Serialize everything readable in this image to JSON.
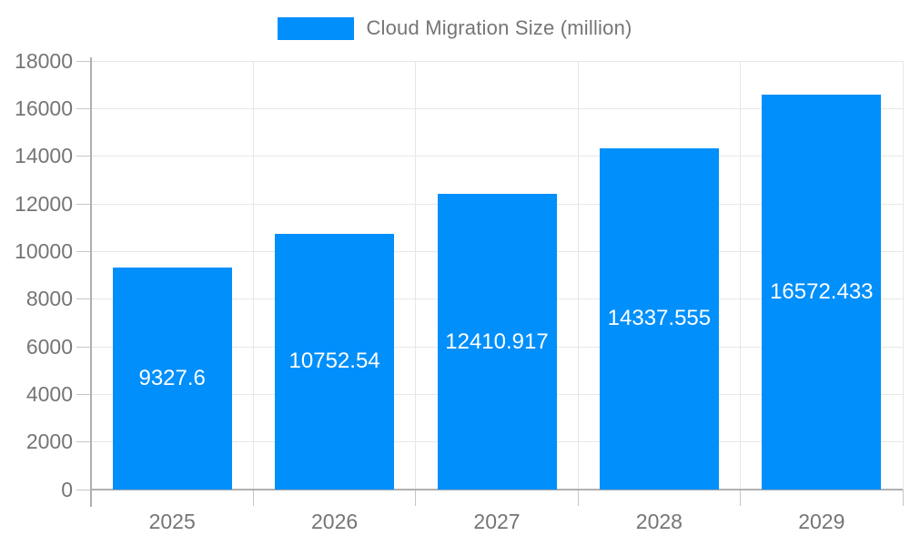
{
  "chart_data": {
    "type": "bar",
    "title": "Cloud Migration Size (million)",
    "legend": {
      "label": "Cloud Migration Size (million)",
      "position": "top",
      "swatch_color": "#008FFB"
    },
    "categories": [
      "2025",
      "2026",
      "2027",
      "2028",
      "2029"
    ],
    "series": [
      {
        "name": "Cloud Migration Size (million)",
        "values": [
          9327.6,
          10752.54,
          12410.917,
          14337.555,
          16572.433
        ]
      }
    ],
    "value_labels": [
      "9327.6",
      "10752.54",
      "12410.917",
      "14337.555",
      "16572.433"
    ],
    "xlabel": "",
    "ylabel": "",
    "ylim": [
      0,
      18000
    ],
    "ytick_step": 2000,
    "ytick_labels": [
      "0",
      "2000",
      "4000",
      "6000",
      "8000",
      "10000",
      "12000",
      "14000",
      "16000",
      "18000"
    ],
    "grid": true,
    "colors": {
      "bar": "#008FFB",
      "value_label": "#ffffff",
      "axis_text": "#757575",
      "grid_line": "#e7e7e7",
      "axis_line": "#b0b0b0",
      "background": "#ffffff"
    }
  }
}
